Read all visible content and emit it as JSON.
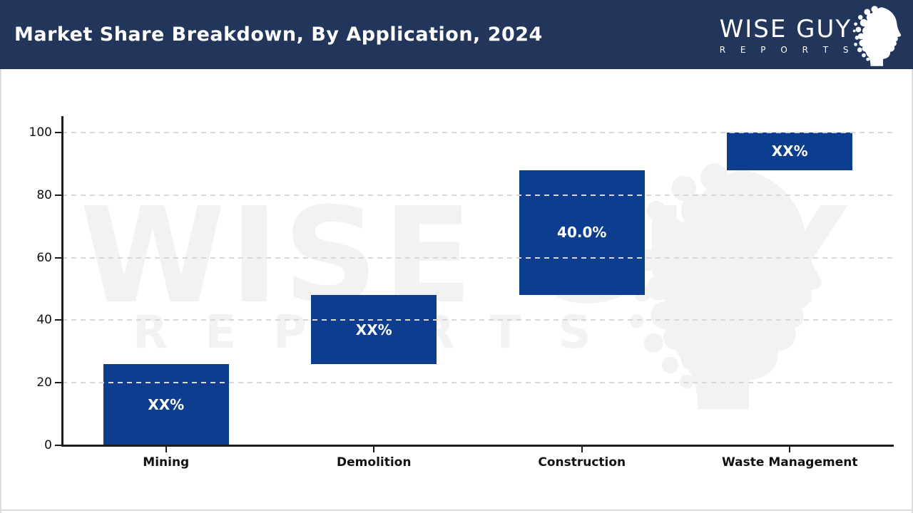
{
  "header": {
    "title": "Market Share Breakdown, By Application, 2024",
    "bg_color": "#22365C",
    "logo": {
      "wordmark": "WISE GUY",
      "subtext": "R E P O R T S"
    }
  },
  "watermark": {
    "line1": "WISE GUY",
    "line2": "REPORTS"
  },
  "chart_data": {
    "type": "bar",
    "subtype": "floating-waterfall",
    "title": "Market Share Breakdown, By Application, 2024",
    "categories": [
      "Mining",
      "Demolition",
      "Construction",
      "Waste Management"
    ],
    "segments": [
      {
        "category": "Mining",
        "start": 0,
        "end": 26,
        "value": 26,
        "label": "XX%"
      },
      {
        "category": "Demolition",
        "start": 26,
        "end": 48,
        "value": 22,
        "label": "XX%"
      },
      {
        "category": "Construction",
        "start": 48,
        "end": 88,
        "value": 40,
        "label": "40.0%"
      },
      {
        "category": "Waste Management",
        "start": 88,
        "end": 100,
        "value": 12,
        "label": "XX%"
      }
    ],
    "xlabel": "",
    "ylabel": "",
    "ylim": [
      0,
      105
    ],
    "yticks": [
      0,
      20,
      40,
      60,
      80,
      100
    ],
    "grid": "horizontal-dashed",
    "legend": "none",
    "bar_color": "#0C3D8F",
    "label_color": "#FFFFFF"
  },
  "colors": {
    "header_bg": "#22365C",
    "bar": "#0C3D8F",
    "grid": "#D8D8D8",
    "axis": "#1C1C1C",
    "watermark": "#F2F2F2",
    "panel_border": "#DCDCDC"
  }
}
